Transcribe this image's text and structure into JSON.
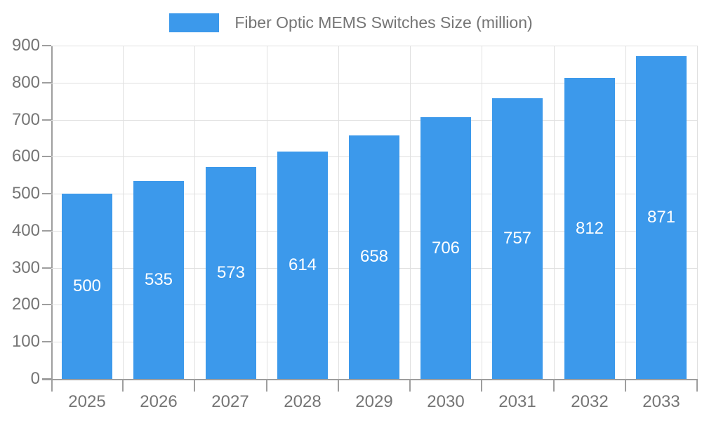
{
  "legend": {
    "label": "Fiber Optic MEMS Switches Size (million)"
  },
  "chart_data": {
    "type": "bar",
    "title": "Fiber Optic MEMS Switches Size (million)",
    "categories": [
      "2025",
      "2026",
      "2027",
      "2028",
      "2029",
      "2030",
      "2031",
      "2032",
      "2033"
    ],
    "values": [
      500,
      535,
      573,
      614,
      658,
      706,
      757,
      812,
      871
    ],
    "xlabel": "",
    "ylabel": "",
    "ylim": [
      0,
      900
    ],
    "ytick_step": 100,
    "grid": true,
    "legend_position": "top-center",
    "bar_value_labels": "white, centered inside bars",
    "colors": {
      "bar": "#3c99eb",
      "axis": "#9e9e9e",
      "grid": "#e0e0e0",
      "tick_label": "#757575",
      "value_label": "#ffffff",
      "background": "#ffffff"
    }
  }
}
